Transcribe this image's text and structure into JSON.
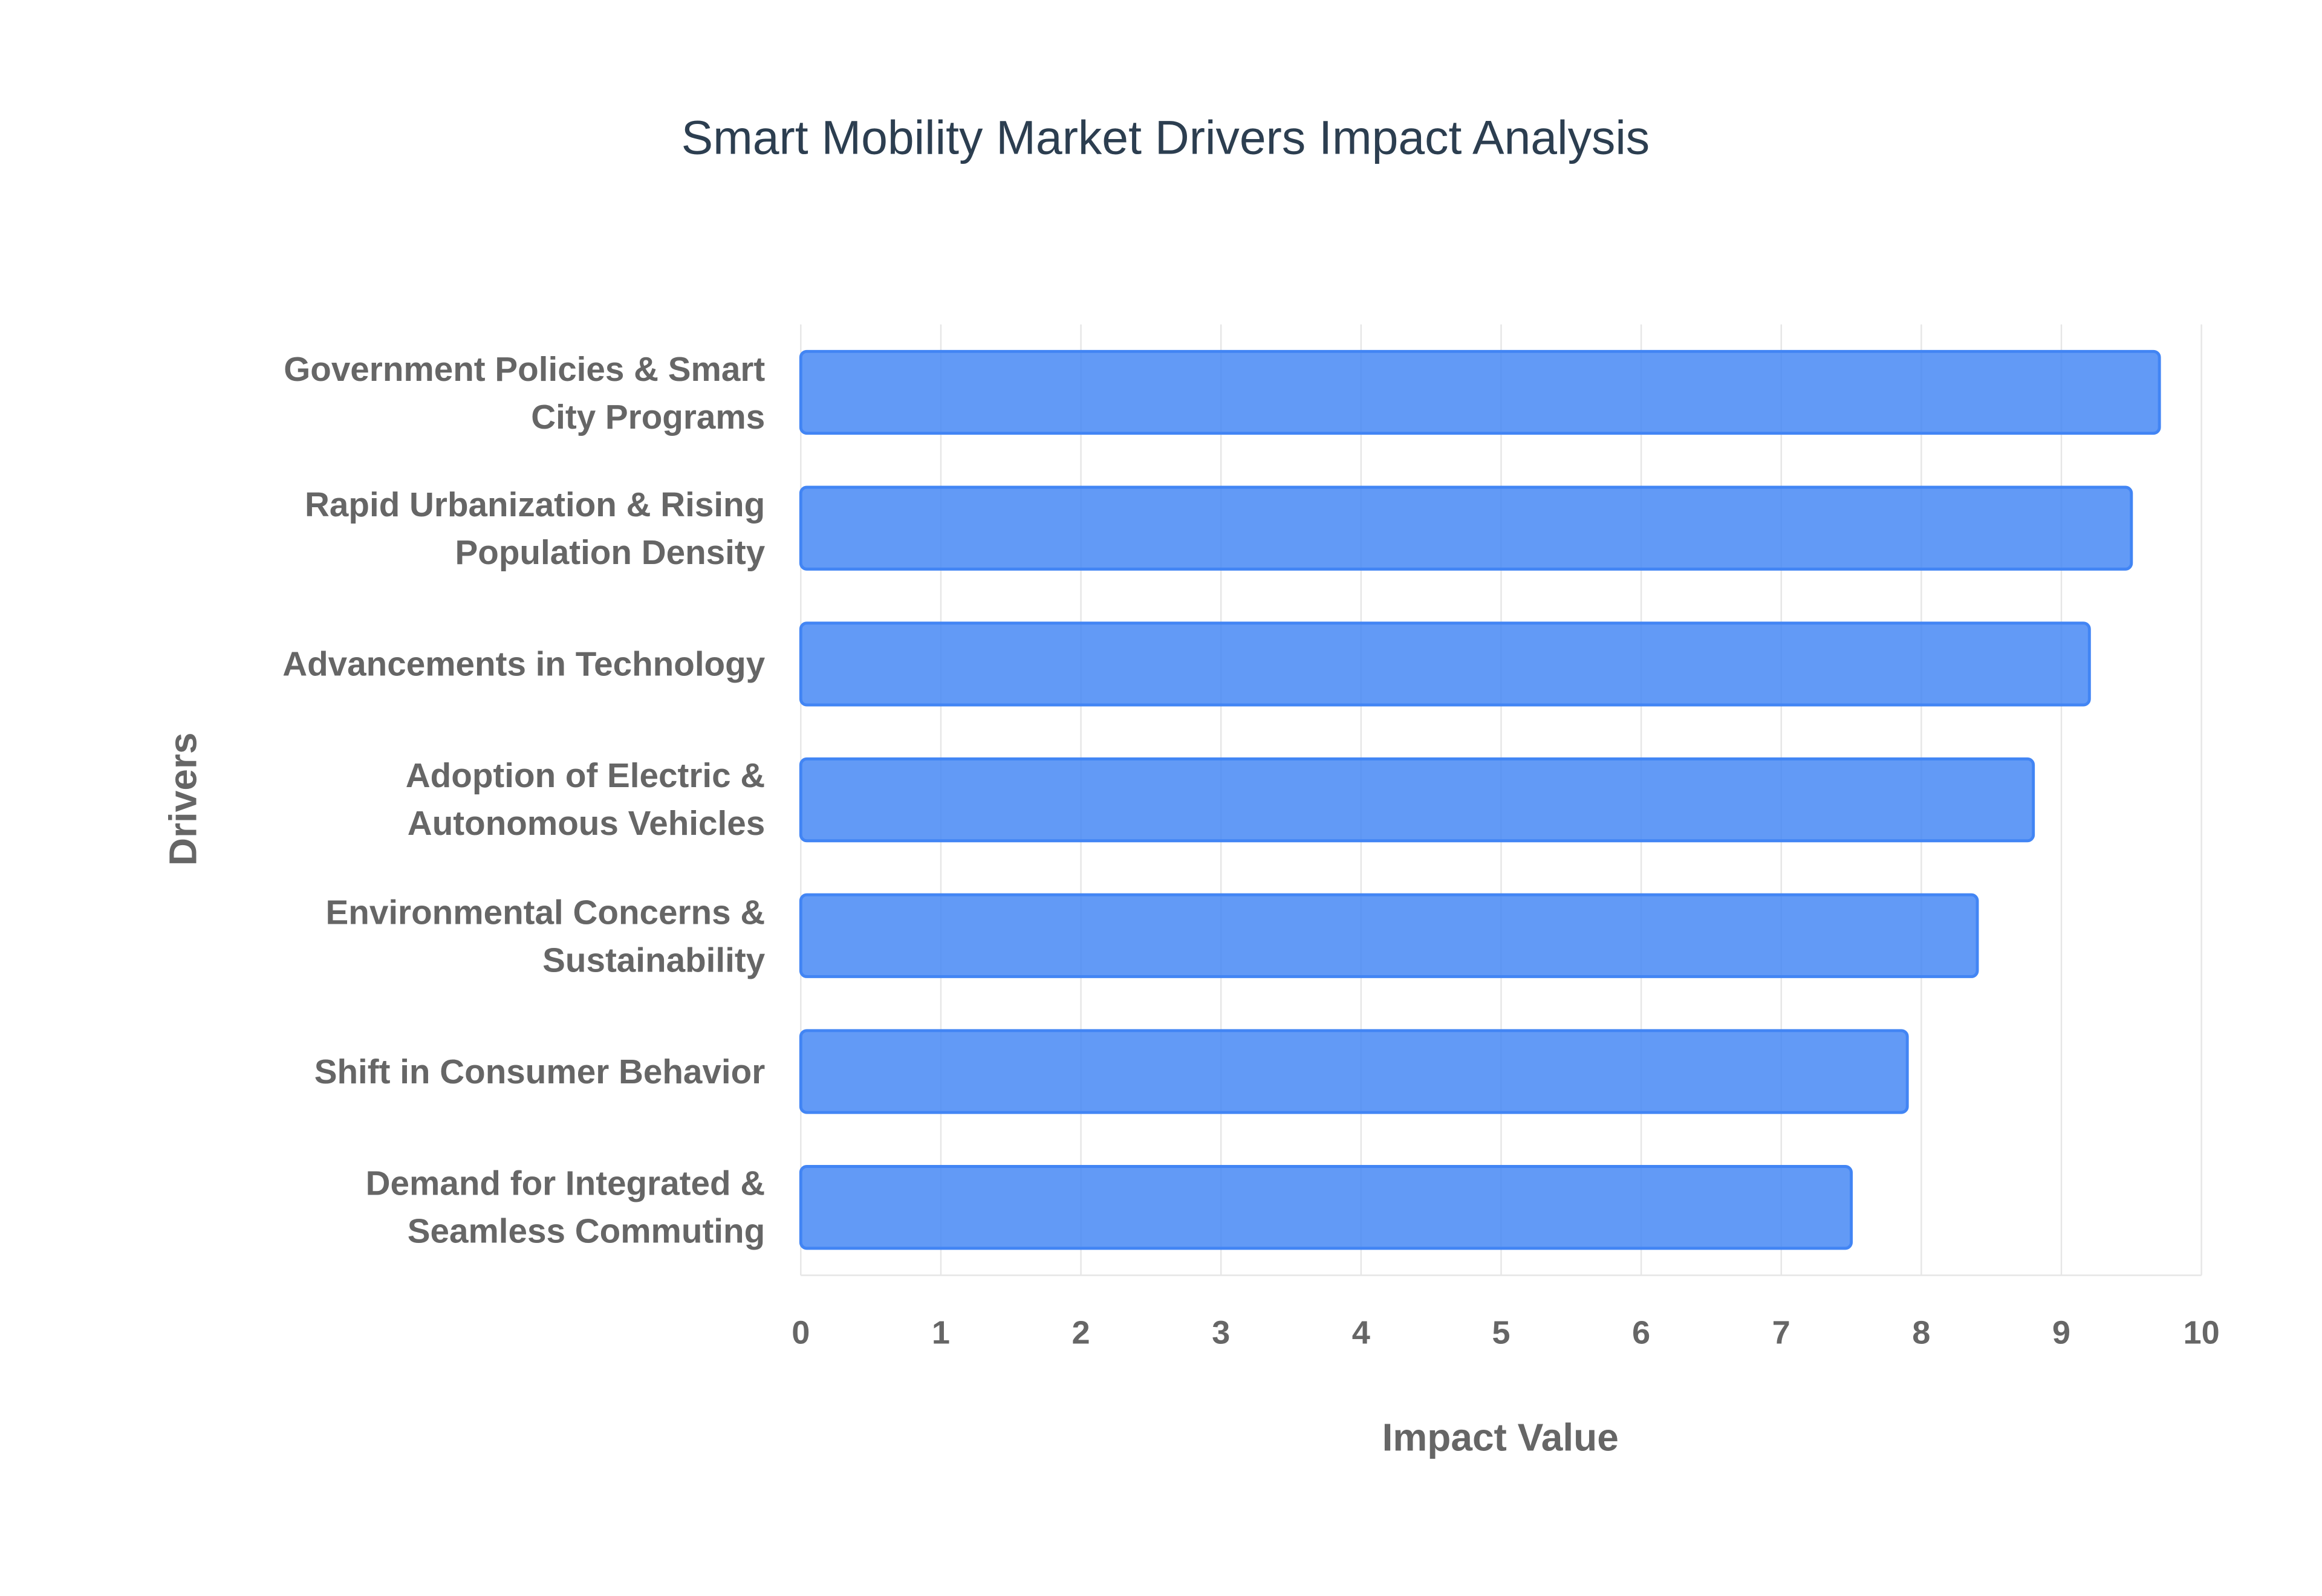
{
  "chart_data": {
    "type": "bar",
    "orientation": "horizontal",
    "title": "Smart Mobility Market Drivers Impact Analysis",
    "x_label": "Impact Value",
    "y_label": "Drivers",
    "categories": [
      "Government Policies & Smart City Programs",
      "Rapid Urbanization & Rising Population Density",
      "Advancements in Technology",
      "Adoption of Electric & Autonomous Vehicles",
      "Environmental Concerns & Sustainability",
      "Shift in Consumer Behavior",
      "Demand for Integrated & Seamless Commuting"
    ],
    "values": [
      9.7,
      9.5,
      9.2,
      8.8,
      8.4,
      7.9,
      7.5
    ],
    "color": "#4285f4",
    "xlim": [
      0,
      10
    ],
    "xticks": [
      0,
      1,
      2,
      3,
      4,
      5,
      6,
      7,
      8,
      9,
      10
    ],
    "grid": true
  }
}
